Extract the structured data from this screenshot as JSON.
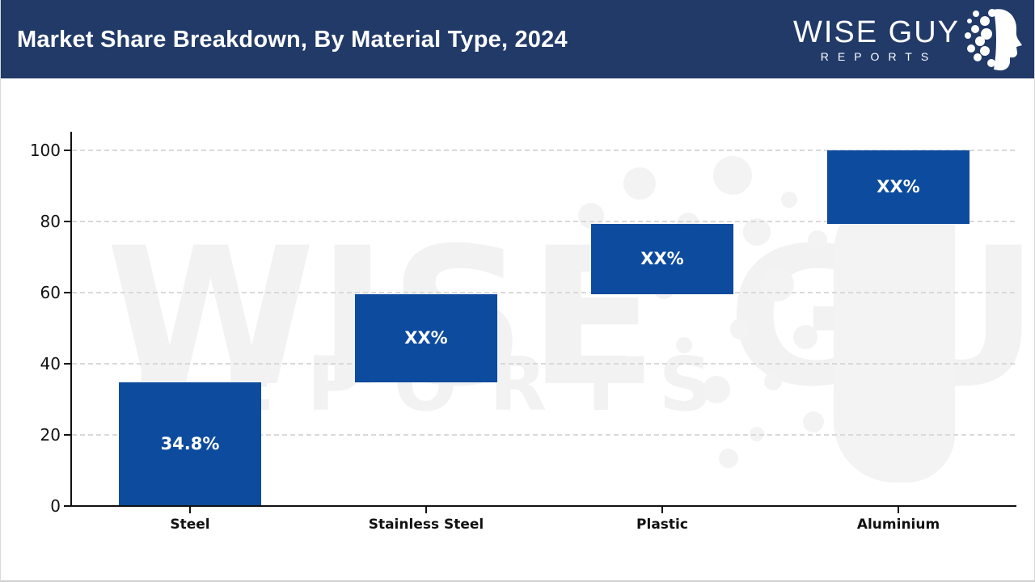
{
  "header": {
    "title": "Market Share Breakdown, By Material Type, 2024",
    "logo": {
      "line1": "WISE GUY",
      "line2": "REPORTS"
    }
  },
  "watermark": {
    "line1": "WISE GUY",
    "line2": "REPORTS"
  },
  "colors": {
    "header_bg": "#213a68",
    "bar": "#0d4b9e",
    "grid": "#d9d9d9",
    "axis": "#111111",
    "bar_label": "#ffffff",
    "watermark": "#f2f2f2"
  },
  "chart_data": {
    "type": "bar",
    "subtype": "waterfall",
    "title": "Market Share Breakdown, By Material Type, 2024",
    "categories": [
      "Steel",
      "Stainless Steel",
      "Plastic",
      "Aluminium"
    ],
    "segments": [
      {
        "start": 0,
        "end": 34.8
      },
      {
        "start": 34.8,
        "end": 59.6
      },
      {
        "start": 59.6,
        "end": 79.4
      },
      {
        "start": 79.4,
        "end": 100
      }
    ],
    "bar_labels": [
      "34.8%",
      "XX%",
      "XX%",
      "XX%"
    ],
    "yticks": [
      0,
      20,
      40,
      60,
      80,
      100
    ],
    "ylim": [
      0,
      100
    ],
    "xlabel": "",
    "ylabel": "",
    "grid": "dashed-horizontal",
    "legend": "none"
  }
}
